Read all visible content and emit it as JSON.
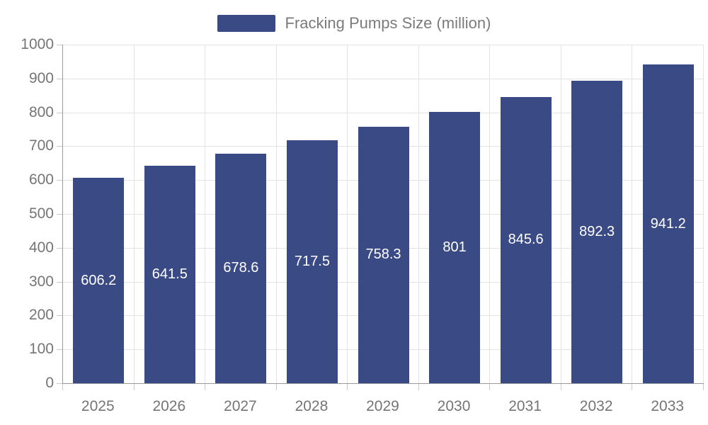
{
  "chart_data": {
    "type": "bar",
    "title": "Fracking Pumps Size (million)",
    "legend_entries": [
      "Fracking Pumps Size (million)"
    ],
    "categories": [
      "2025",
      "2026",
      "2027",
      "2028",
      "2029",
      "2030",
      "2031",
      "2032",
      "2033"
    ],
    "values": [
      606.2,
      641.5,
      678.6,
      717.5,
      758.3,
      801,
      845.6,
      892.3,
      941.2
    ],
    "value_labels": [
      "606.2",
      "641.5",
      "678.6",
      "717.5",
      "758.3",
      "801",
      "845.6",
      "892.3",
      "941.2"
    ],
    "xlabel": "",
    "ylabel": "",
    "ylim": [
      0,
      1000
    ],
    "ytick_step": 100,
    "ytick_labels": [
      "0",
      "100",
      "200",
      "300",
      "400",
      "500",
      "600",
      "700",
      "800",
      "900",
      "1000"
    ],
    "grid": true,
    "legend_position": "top-center",
    "colors": {
      "bar": "#3A4A85",
      "value_label": "#ffffff",
      "axis_text": "#757575",
      "legend_text": "#7b7b7b",
      "gridline": "#e3e3e3",
      "axis_line": "#999999",
      "background": "#ffffff"
    }
  }
}
